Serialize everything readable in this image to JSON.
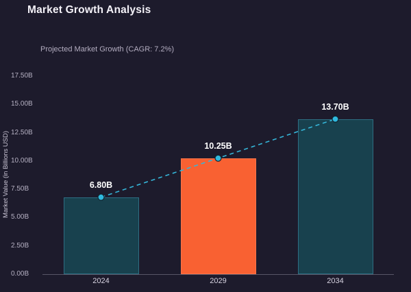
{
  "title": "Market Growth Analysis",
  "subtitle": "Projected Market Growth (CAGR: 7.2%)",
  "chart_data": {
    "type": "bar",
    "title": "Market Growth Analysis",
    "subtitle": "Projected Market Growth (CAGR: 7.2%)",
    "categories": [
      "2024",
      "2029",
      "2034"
    ],
    "values": [
      6.8,
      10.25,
      13.7
    ],
    "value_labels": [
      "6.80B",
      "10.25B",
      "13.70B"
    ],
    "bar_colors": [
      "#18414e",
      "#f96132",
      "#18414e"
    ],
    "bar_border_colors": [
      "#2e6e83",
      "#fa7348",
      "#2e6e83"
    ],
    "xlabel": "",
    "ylabel": "Market Value (in Billions USD)",
    "ylim": [
      0,
      17.5
    ],
    "ytick_step": 2.5,
    "ytick_labels": [
      "0.00B",
      "2.50B",
      "5.00B",
      "7.50B",
      "10.00B",
      "12.50B",
      "15.00B",
      "17.50B"
    ],
    "grid": false,
    "legend": false,
    "trend_line": {
      "style": "dashed",
      "color": "#35b6d9",
      "marker_color": "#2fb9de",
      "markers": true
    }
  },
  "colors": {
    "background": "#1d1b2c",
    "bar_teal": "#18414e",
    "bar_orange": "#f96132",
    "trend": "#35b6d9",
    "text_primary": "#f4f2f8",
    "text_muted": "#b3adc0"
  }
}
